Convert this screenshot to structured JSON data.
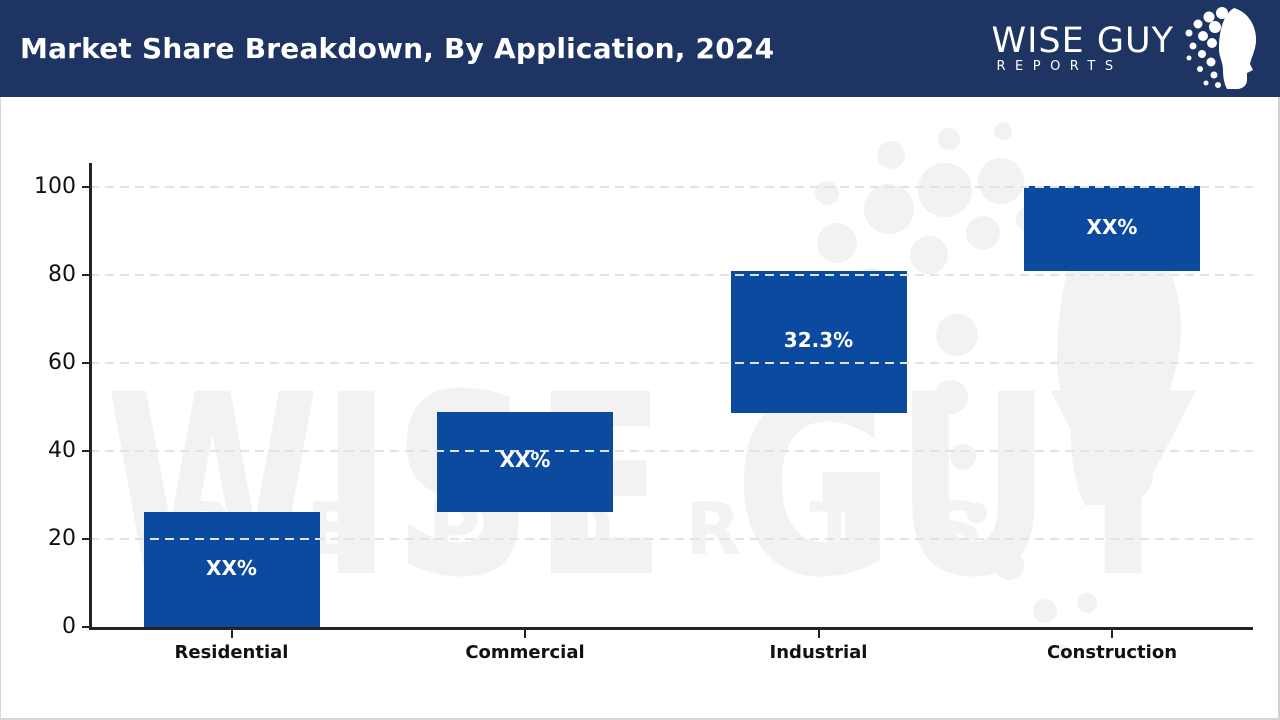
{
  "header": {
    "title": "Market Share Breakdown, By Application, 2024",
    "logo": {
      "line1": "WISE GUY",
      "line2": "REPORTS"
    }
  },
  "watermark": {
    "line1": "WISE GUY",
    "line2": "REPORTS"
  },
  "chart_data": {
    "type": "bar",
    "subtype": "waterfall",
    "title": "Market Share Breakdown, By Application, 2024",
    "categories": [
      "Residential",
      "Commercial",
      "Industrial",
      "Construction"
    ],
    "series": [
      {
        "name": "Market Share",
        "segments": [
          {
            "category": "Residential",
            "start": 0,
            "end": 26.1,
            "label": "XX%"
          },
          {
            "category": "Commercial",
            "start": 26.1,
            "end": 48.9,
            "label": "XX%"
          },
          {
            "category": "Industrial",
            "start": 48.6,
            "end": 80.9,
            "label": "32.3%"
          },
          {
            "category": "Construction",
            "start": 80.9,
            "end": 100.2,
            "label": "XX%"
          }
        ]
      }
    ],
    "xlabel": "",
    "ylabel": "",
    "yticks": [
      0,
      20,
      40,
      60,
      80,
      100
    ],
    "ylim": [
      0,
      105
    ],
    "grid": "horizontal-dashed",
    "legend": "none",
    "bar_color": "#0b4a9e",
    "bar_label_color": "#ffffff",
    "axis_color": "#242424",
    "grid_color": "#e3e3e3"
  },
  "colors": {
    "header_bg": "#1e3462",
    "bar": "#0b4a9e",
    "watermark": "#f2f2f2",
    "frame_border": "#d6d6d6"
  }
}
